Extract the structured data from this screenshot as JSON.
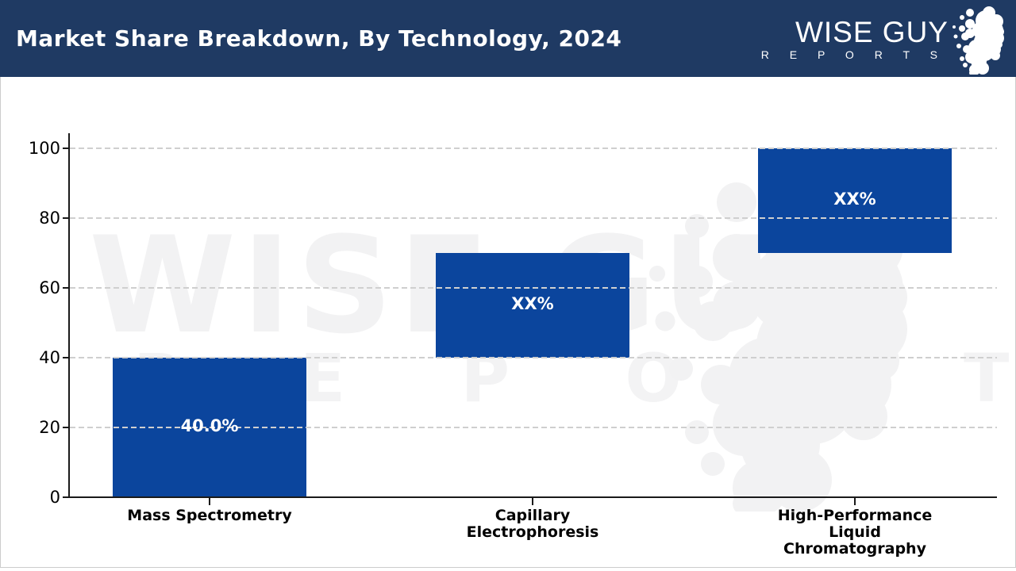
{
  "header": {
    "title": "Market Share Breakdown, By Technology, 2024",
    "bg_color": "#1f3a63",
    "logo": {
      "line1": "WISE GUY",
      "line2": "R E P O R T S"
    }
  },
  "watermark": {
    "line1": "WISE GUY",
    "line2": "R E P O R T S"
  },
  "chart_data": {
    "type": "bar",
    "subtype": "waterfall",
    "title": "Market Share Breakdown, By Technology, 2024",
    "categories": [
      "Mass Spectrometry",
      "Capillary\nElectrophoresis",
      "High-Performance\nLiquid\nChromatography"
    ],
    "bar_labels": [
      "40.0%",
      "XX%",
      "XX%"
    ],
    "bar_ranges": [
      [
        0,
        40
      ],
      [
        40,
        70
      ],
      [
        70,
        100
      ]
    ],
    "values": [
      40,
      30,
      30
    ],
    "xlabel": "",
    "ylabel": "",
    "ylim": [
      0,
      100
    ],
    "yticks": [
      0,
      20,
      40,
      60,
      80,
      100
    ],
    "grid": "dashed-horizontal-over-bars",
    "legend": "none",
    "bar_color": "#0b459d",
    "label_color": "#ffffff",
    "axis_color": "#1a1a1a",
    "gridline_color": "#cfcfcf"
  }
}
